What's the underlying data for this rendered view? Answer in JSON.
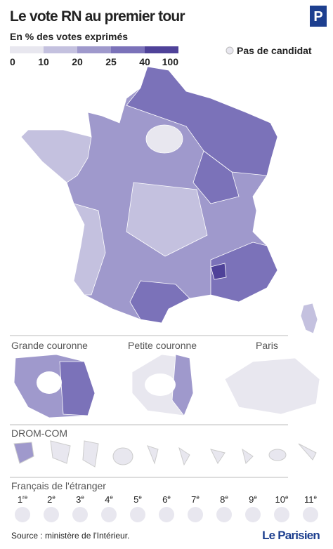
{
  "header": {
    "title": "Le vote RN au premier tour",
    "subtitle": "En % des votes exprimés",
    "logo": "P"
  },
  "legend": {
    "bins": [
      0,
      10,
      20,
      25,
      40,
      100
    ],
    "colors": [
      "#e8e7ef",
      "#c4c1df",
      "#9f99cc",
      "#7b72b9",
      "#4f4299"
    ],
    "no_candidate": "Pas de candidat"
  },
  "sections": {
    "grande_couronne": "Grande couronne",
    "petite_couronne": "Petite couronne",
    "paris": "Paris",
    "drom_com": "DROM-COM",
    "etranger": "Français de l'étranger"
  },
  "etranger": [
    {
      "n": "1",
      "sup": "re"
    },
    {
      "n": "2",
      "sup": "e"
    },
    {
      "n": "3",
      "sup": "e"
    },
    {
      "n": "4",
      "sup": "e"
    },
    {
      "n": "5",
      "sup": "e"
    },
    {
      "n": "6",
      "sup": "e"
    },
    {
      "n": "7",
      "sup": "e"
    },
    {
      "n": "8",
      "sup": "e"
    },
    {
      "n": "9",
      "sup": "e"
    },
    {
      "n": "10",
      "sup": "e"
    },
    {
      "n": "11",
      "sup": "e"
    }
  ],
  "footer": {
    "source": "Source : ministère de l'Intérieur.",
    "brand": "Le Parisien"
  }
}
